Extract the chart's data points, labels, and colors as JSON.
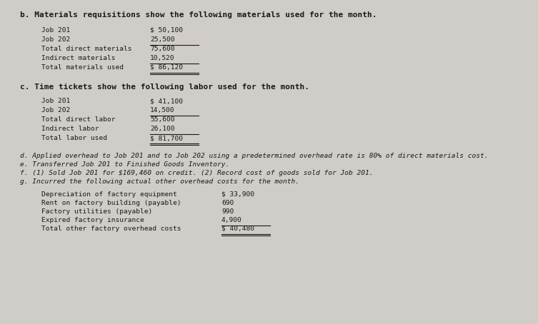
{
  "bg_color": "#d0ccc8",
  "text_color": "#1a1a1a",
  "header_top": "b. Materials requisitions show the following materials used for the month.",
  "section_b": {
    "rows": [
      {
        "label": "Job 201",
        "value": "$ 50,100",
        "underline": false,
        "double": false
      },
      {
        "label": "Job 202",
        "value": "25,500",
        "underline": true,
        "double": false
      },
      {
        "label": "Total direct materials",
        "value": "75,600",
        "underline": false,
        "double": false
      },
      {
        "label": "Indirect materials",
        "value": "10,520",
        "underline": true,
        "double": false
      },
      {
        "label": "Total materials used",
        "value": "$ 86,120",
        "underline": true,
        "double": true
      }
    ]
  },
  "header_c": "c. Time tickets show the following labor used for the month.",
  "section_c": {
    "rows": [
      {
        "label": "Job 201",
        "value": "$ 41,100",
        "underline": false,
        "double": false
      },
      {
        "label": "Job 202",
        "value": "14,500",
        "underline": true,
        "double": false
      },
      {
        "label": "Total direct labor",
        "value": "55,600",
        "underline": false,
        "double": false
      },
      {
        "label": "Indirect labor",
        "value": "26,100",
        "underline": true,
        "double": false
      },
      {
        "label": "Total labor used",
        "value": "$ 81,700",
        "underline": true,
        "double": true
      }
    ]
  },
  "section_d_lines": [
    "d. Applied overhead to Job 201 and to Job 202 using a predetermined overhead rate is 80% of direct materials cost.",
    "e. Transferred Job 201 to Finished Goods Inventory.",
    "f. (1) Sold Job 201 for $169,460 on credit. (2) Record cost of goods sold for Job 201.",
    "g. Incurred the following actual other overhead costs for the month."
  ],
  "section_g": {
    "rows": [
      {
        "label": "Depreciation of factory equipment",
        "value": "$ 33,900",
        "underline": false,
        "double": false
      },
      {
        "label": "Rent on factory building (payable)",
        "value": "690",
        "underline": false,
        "double": false
      },
      {
        "label": "Factory utilities (payable)",
        "value": "990",
        "underline": false,
        "double": false
      },
      {
        "label": "Expired factory insurance",
        "value": "4,900",
        "underline": true,
        "double": false
      },
      {
        "label": "Total other factory overhead costs",
        "value": "$ 40,480",
        "underline": true,
        "double": true
      }
    ]
  }
}
